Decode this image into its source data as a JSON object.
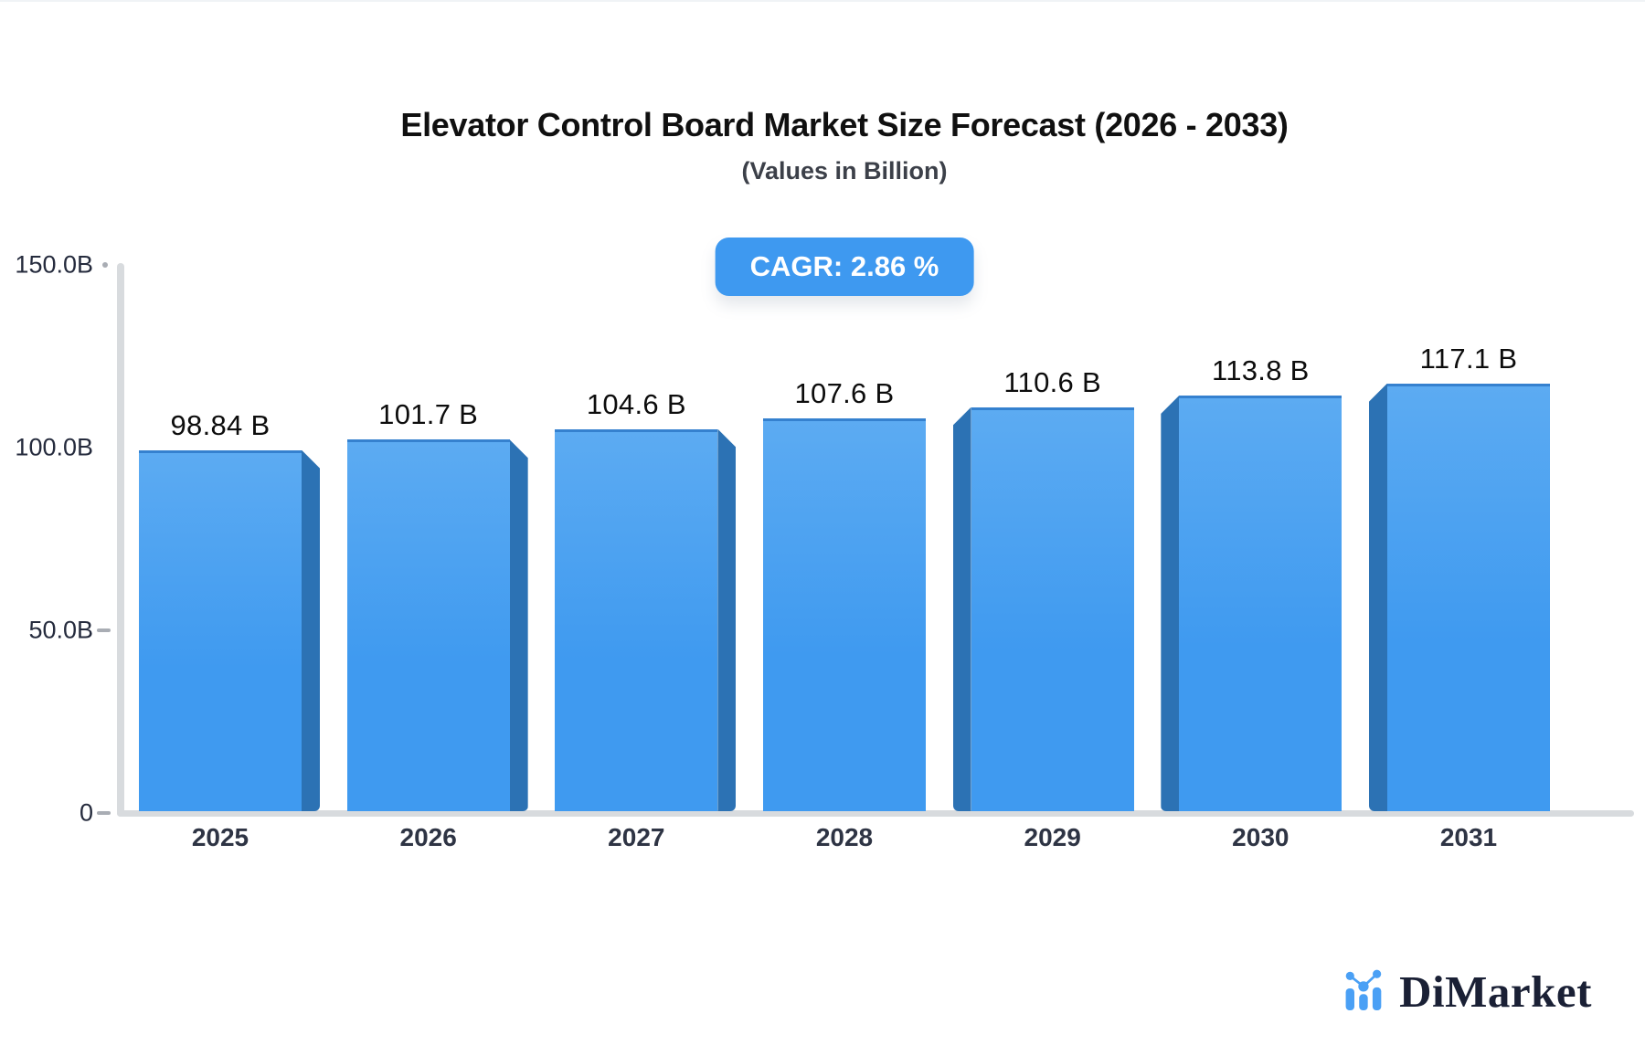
{
  "header": {
    "title": "Elevator Control Board Market Size Forecast (2026 - 2033)",
    "subtitle": "(Values in Billion)",
    "cagr_badge": "CAGR: 2.86 %"
  },
  "chart_data": {
    "type": "bar",
    "title": "Elevator Control Board Market Size Forecast (2026 - 2033)",
    "subtitle": "(Values in Billion)",
    "categories": [
      "2025",
      "2026",
      "2027",
      "2028",
      "2029",
      "2030",
      "2031"
    ],
    "values": [
      98.84,
      101.7,
      104.6,
      107.6,
      110.6,
      113.8,
      117.1
    ],
    "value_labels": [
      "98.84 B",
      "101.7 B",
      "104.6 B",
      "107.6 B",
      "110.6 B",
      "113.8 B",
      "117.1 B"
    ],
    "unit": "Billion",
    "ylim": [
      0,
      150
    ],
    "y_ticks": [
      {
        "label": "150.0B",
        "value": 150,
        "mark": "dot"
      },
      {
        "label": "100.0B",
        "value": 100,
        "mark": "none"
      },
      {
        "label": "50.0B",
        "value": 50,
        "mark": "dash"
      },
      {
        "label": "0",
        "value": 0,
        "mark": "dash"
      }
    ],
    "grid": "off",
    "legend": "none"
  },
  "colors": {
    "bar_face_top": "#5cabf2",
    "bar_face_bottom": "#3f9af0",
    "bar_side": "#2c72b4",
    "bar_top_edge": "#3581cf",
    "badge_bg": "#3e99f0",
    "badge_text": "#ffffff",
    "axis_line": "#d8dbde",
    "tick_mark": "#a9adb4",
    "logo_blue": "#4aa0f5",
    "logo_navy": "#1a2035"
  },
  "footer": {
    "logo_text": "DiMarket"
  }
}
